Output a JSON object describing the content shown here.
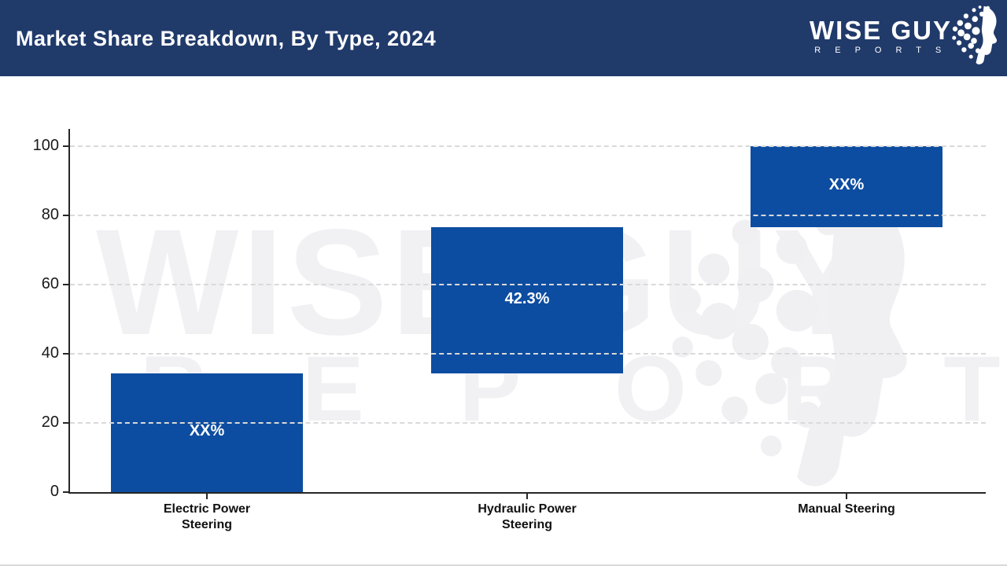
{
  "header": {
    "title": "Market Share Breakdown, By Type, 2024",
    "logo_text": "WISE GUY",
    "logo_subtext": "R E P O R T S"
  },
  "watermark": {
    "text": "WISE GUY",
    "subtext": "R E P O R T S"
  },
  "colors": {
    "header_bg": "#203a6a",
    "bar": "#0d4da1",
    "bar_label": "#ffffff",
    "grid": "#d9d9d9",
    "axis": "#262626",
    "tick_label": "#1a1a1a",
    "watermark": "#f1f1f4"
  },
  "chart_data": {
    "type": "bar",
    "subtype": "waterfall",
    "title": "Market Share Breakdown, By Type, 2024",
    "xlabel": "",
    "ylabel": "",
    "ylim": [
      0,
      105
    ],
    "yticks": [
      0,
      20,
      40,
      60,
      80,
      100
    ],
    "grid": "horizontal-dashed, drawn above bars",
    "legend": "none",
    "categories": [
      "Electric Power\nSteering",
      "Hydraulic Power\nSteering",
      "Manual Steering"
    ],
    "bars": [
      {
        "category": "Electric Power Steering",
        "start": 0,
        "end": 34.4,
        "segment_value": 34.4,
        "label": "XX%"
      },
      {
        "category": "Hydraulic Power Steering",
        "start": 34.4,
        "end": 76.7,
        "segment_value": 42.3,
        "label": "42.3%"
      },
      {
        "category": "Manual Steering",
        "start": 76.7,
        "end": 100,
        "segment_value": 23.3,
        "label": "XX%"
      }
    ]
  }
}
